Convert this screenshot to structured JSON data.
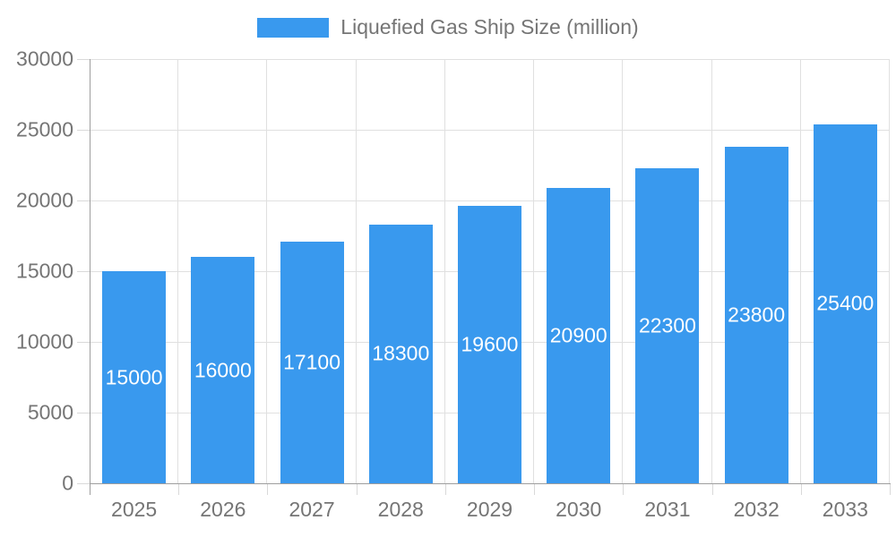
{
  "legend": {
    "label": "Liquefied Gas Ship Size (million)"
  },
  "colors": {
    "bar": "#3999EE",
    "grid": "#E0E0E0",
    "axis": "#9E9E9E",
    "tick": "#D9D9D9",
    "text": "#757575",
    "bar_label": "#FFFFFF",
    "background": "#FFFFFF"
  },
  "chart_data": {
    "type": "bar",
    "title": "Liquefied Gas Ship Size (million)",
    "categories": [
      "2025",
      "2026",
      "2027",
      "2028",
      "2029",
      "2030",
      "2031",
      "2032",
      "2033"
    ],
    "series": [
      {
        "name": "Liquefied Gas Ship Size (million)",
        "values": [
          15000,
          16000,
          17100,
          18300,
          19600,
          20900,
          22300,
          23800,
          25400
        ]
      }
    ],
    "value_labels": [
      "15000",
      "16000",
      "17100",
      "18300",
      "19600",
      "20900",
      "22300",
      "23800",
      "25400"
    ],
    "xlabel": "",
    "ylabel": "",
    "ylim": [
      0,
      30000
    ],
    "yticks": [
      0,
      5000,
      10000,
      15000,
      20000,
      25000,
      30000
    ],
    "ytick_labels": [
      "0",
      "5000",
      "10000",
      "15000",
      "20000",
      "25000",
      "30000"
    ],
    "grid": true,
    "legend_position": "top-center",
    "value_label_position": "inside-center"
  }
}
